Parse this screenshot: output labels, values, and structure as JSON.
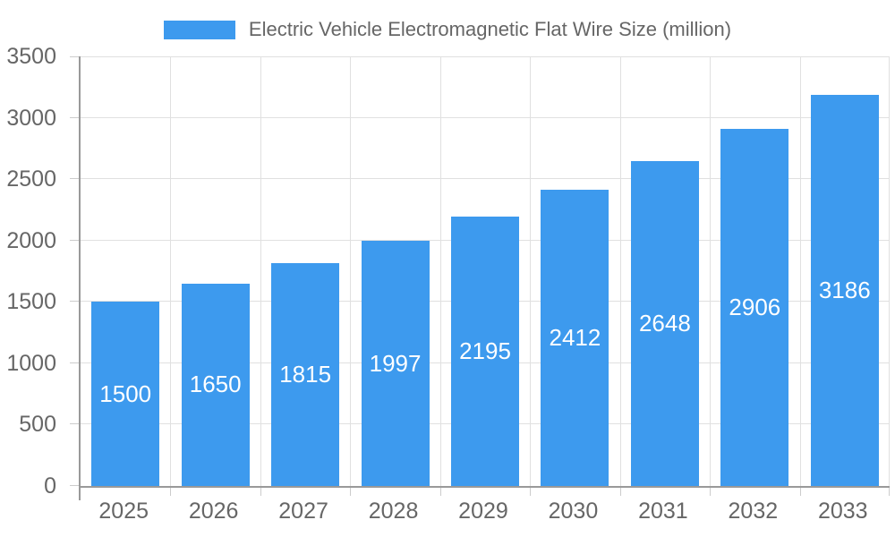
{
  "chart_data": {
    "type": "bar",
    "title": "Electric Vehicle Electromagnetic Flat Wire Size (million)",
    "legend_position": "top",
    "categories": [
      "2025",
      "2026",
      "2027",
      "2028",
      "2029",
      "2030",
      "2031",
      "2032",
      "2033"
    ],
    "values": [
      1500,
      1650,
      1815,
      1997,
      2195,
      2412,
      2648,
      2906,
      3186
    ],
    "xlabel": "",
    "ylabel": "",
    "ylim": [
      0,
      3500
    ],
    "yticks": [
      0,
      500,
      1000,
      1500,
      2000,
      2500,
      3000,
      3500
    ],
    "grid": "both",
    "bar_labels_inside": true,
    "colors": {
      "bar": "#3D9AEE",
      "bar_label": "#FFFFFF",
      "axis_text": "#666666",
      "legend_text": "#666666",
      "grid_line": "#E0E0E0",
      "axis_line": "#999999",
      "tick_line": "#CCCCCC",
      "background": "#FFFFFF"
    }
  }
}
